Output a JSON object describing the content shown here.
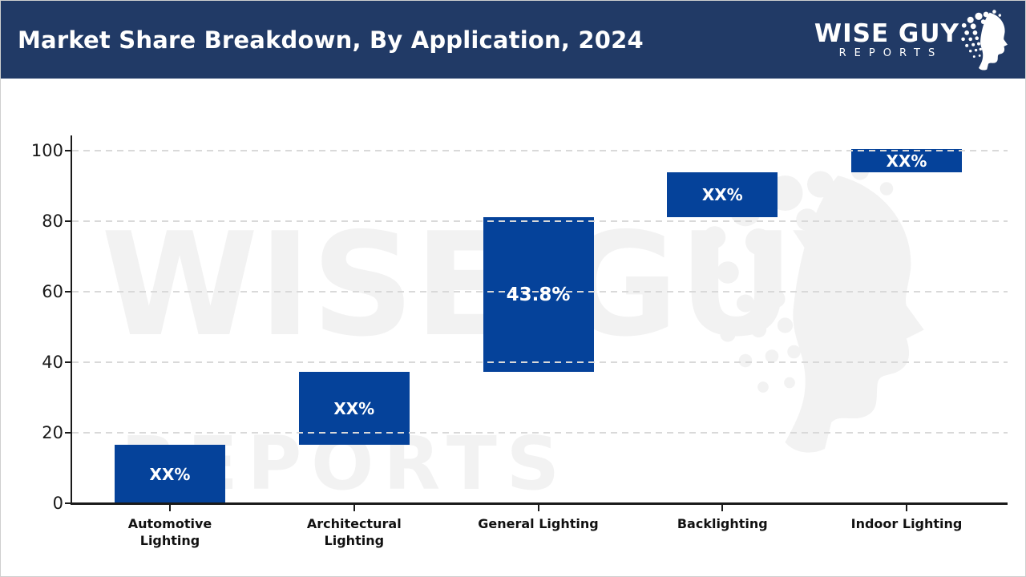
{
  "header": {
    "title": "Market Share Breakdown, By Application, 2024",
    "logo_wordmark": "WISE GUY",
    "logo_subtext": "REPORTS",
    "bg_color": "#213a66"
  },
  "watermark": {
    "wordmark": "WISE GUY",
    "subtext": "REPORTS"
  },
  "chart_data": {
    "type": "bar",
    "subtype": "floating-waterfall",
    "title": "Market Share Breakdown, By Application, 2024",
    "xlabel": "",
    "ylabel": "",
    "ylim": [
      0,
      104
    ],
    "yticks": [
      0,
      20,
      40,
      60,
      80,
      100
    ],
    "grid": "horizontal-dashed",
    "legend": "none",
    "bar_color": "#05429a",
    "value_label_color": "#ffffff",
    "categories": [
      "Automotive Lighting",
      "Architectural Lighting",
      "General Lighting",
      "Backlighting",
      "Indoor Lighting"
    ],
    "category_label_lines": [
      [
        "Automotive",
        "Lighting"
      ],
      [
        "Architectural",
        "Lighting"
      ],
      [
        "General Lighting"
      ],
      [
        "Backlighting"
      ],
      [
        "Indoor Lighting"
      ]
    ],
    "segments": [
      {
        "category": "Automotive Lighting",
        "start": 0,
        "end": 16.5,
        "value_label": "XX%"
      },
      {
        "category": "Architectural Lighting",
        "start": 16.5,
        "end": 37.3,
        "value_label": "XX%"
      },
      {
        "category": "General Lighting",
        "start": 37.3,
        "end": 81.1,
        "value_label": "43.8%"
      },
      {
        "category": "Backlighting",
        "start": 81.1,
        "end": 93.9,
        "value_label": "XX%"
      },
      {
        "category": "Indoor Lighting",
        "start": 93.9,
        "end": 100.4,
        "value_label": "XX%"
      }
    ]
  }
}
